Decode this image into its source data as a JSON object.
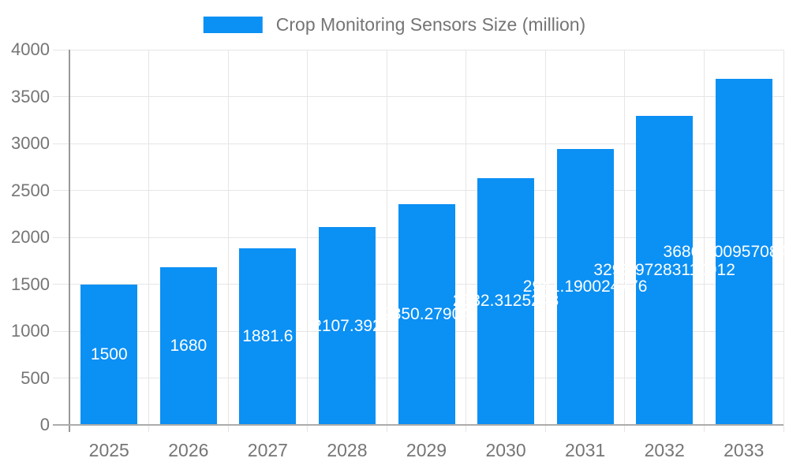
{
  "legend": {
    "label": "Crop Monitoring Sensors Size (million)"
  },
  "chart_data": {
    "type": "bar",
    "title": "Crop Monitoring Sensors Size (million)",
    "categories": [
      "2025",
      "2026",
      "2027",
      "2028",
      "2029",
      "2030",
      "2031",
      "2032",
      "2033"
    ],
    "values": [
      1500,
      1680,
      1881.6,
      2107.392,
      2350.27904,
      2632.3125248,
      2941.190024776,
      3296.97283110912,
      3686.3009570841914
    ],
    "bar_labels": [
      "1500",
      "1680",
      "1881.6",
      "2107.392",
      "2350.27904",
      "2632.3125248",
      "2941.190024776",
      "3296.97283110912",
      "3686.3009570841912"
    ],
    "xlabel": "",
    "ylabel": "",
    "ylim": [
      0,
      4000
    ],
    "yticks": [
      0,
      500,
      1000,
      1500,
      2000,
      2500,
      3000,
      3500,
      4000
    ],
    "grid": true,
    "legend_position": "top",
    "bar_color": "#0b90f4",
    "bar_label_color": "#ffffff",
    "axis_text_color": "#757575",
    "grid_color": "#e6e6e6"
  }
}
